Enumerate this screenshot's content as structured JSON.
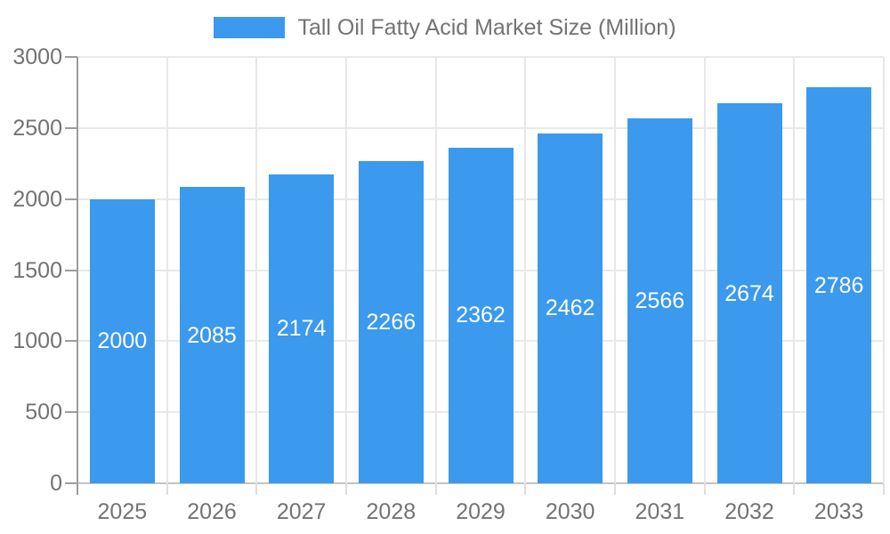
{
  "chart_data": {
    "type": "bar",
    "title": "Tall Oil Fatty Acid Market Size (Million)",
    "legend": [
      "Tall Oil Fatty Acid Market Size (Million)"
    ],
    "legend_position": "top-center",
    "categories": [
      "2025",
      "2026",
      "2027",
      "2028",
      "2029",
      "2030",
      "2031",
      "2032",
      "2033"
    ],
    "values": [
      2000,
      2085,
      2174,
      2266,
      2362,
      2462,
      2566,
      2674,
      2786
    ],
    "value_labels_visible": true,
    "xlabel": "",
    "ylabel": "",
    "ylim": [
      0,
      3000
    ],
    "ytick_step": 500,
    "yticks": [
      "0",
      "500",
      "1000",
      "1500",
      "2000",
      "2500",
      "3000"
    ],
    "grid": true,
    "colors": {
      "bar": "#3b99ee",
      "value_label": "#ffffff",
      "axis_line": "#9c9c9c",
      "grid_line": "#e8e8e8",
      "zero_line": "#c3c3c3",
      "tick_label": "#737373",
      "background": "#ffffff"
    }
  }
}
